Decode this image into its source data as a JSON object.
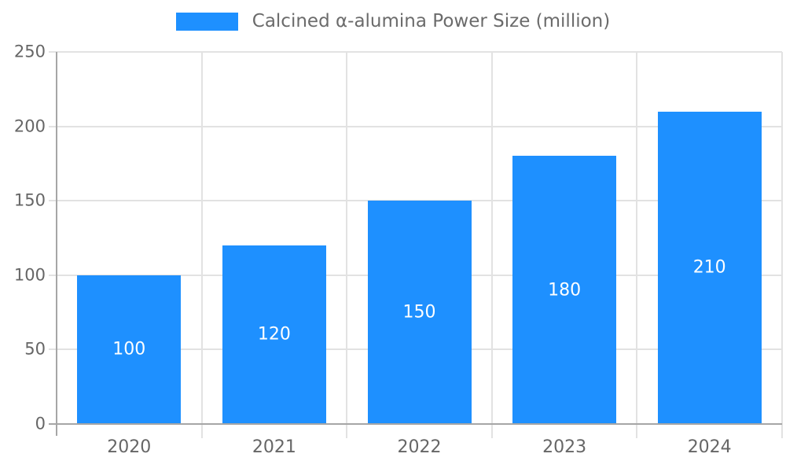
{
  "chart_data": {
    "type": "bar",
    "title": "Calcined α-alumina Power Size (million)",
    "categories": [
      "2020",
      "2021",
      "2022",
      "2023",
      "2024"
    ],
    "values": [
      100,
      120,
      150,
      180,
      210
    ],
    "series": [
      {
        "name": "Calcined α-alumina Power Size (million)",
        "values": [
          100,
          120,
          150,
          180,
          210
        ]
      }
    ],
    "bar_value_labels": [
      "100",
      "120",
      "150",
      "180",
      "210"
    ],
    "ytick_labels": [
      "0",
      "50",
      "100",
      "150",
      "200",
      "250"
    ],
    "yticks": [
      0,
      50,
      100,
      150,
      200,
      250
    ],
    "ylim": [
      0,
      250
    ],
    "xlabel": "",
    "ylabel": "",
    "legend_position": "top-center",
    "grid": "both",
    "bar_labels_position": "inside-center",
    "colors": {
      "bar": "#1e90ff",
      "bar_label": "#ffffff",
      "grid": "#e2e2e2",
      "axis": "#a6a6a6",
      "tick_label": "#666666",
      "legend_text": "#6b6b6b",
      "background": "#ffffff"
    }
  }
}
